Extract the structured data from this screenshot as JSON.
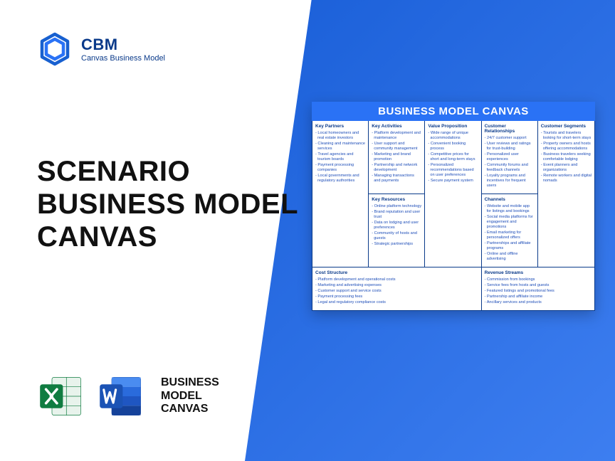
{
  "brand": {
    "short": "CBM",
    "tagline": "Canvas Business Model"
  },
  "title": {
    "line1": "SCENARIO",
    "line2": "BUSINESS MODEL",
    "line3": "CANVAS"
  },
  "iconsLabel": {
    "l1": "BUSINESS",
    "l2": "MODEL",
    "l3": "CANVAS"
  },
  "canvas": {
    "title": "BUSINESS MODEL CANVAS",
    "blocks": {
      "keyPartners": {
        "hd": "Key Partners",
        "items": [
          "Local homeowners and real estate investors",
          "Cleaning and maintenance services",
          "Travel agencies and tourism boards",
          "Payment processing companies",
          "Local governments and regulatory authorities"
        ]
      },
      "keyActivities": {
        "hd": "Key Activities",
        "items": [
          "Platform development and maintenance",
          "User support and community management",
          "Marketing and brand promotion",
          "Partnership and network development",
          "Managing transactions and payments"
        ]
      },
      "keyResources": {
        "hd": "Key Resources",
        "items": [
          "Online platform technology",
          "Brand reputation and user trust",
          "Data on lodging and user preferences",
          "Community of hosts and guests",
          "Strategic partnerships"
        ]
      },
      "valueProp": {
        "hd": "Value Proposition",
        "items": [
          "Wide range of unique accommodations",
          "Convenient booking process",
          "Competitive prices for short and long-term stays",
          "Personalized recommendations based on user preferences",
          "Secure payment system"
        ]
      },
      "custRel": {
        "hd": "Customer Relationships",
        "items": [
          "24/7 customer support",
          "User reviews and ratings for trust-building",
          "Personalized user experiences",
          "Community forums and feedback channels",
          "Loyalty programs and incentives for frequent users"
        ]
      },
      "channels": {
        "hd": "Channels",
        "items": [
          "Website and mobile app for listings and bookings",
          "Social media platforms for engagement and promotions",
          "Email marketing for personalized offers",
          "Partnerships and affiliate programs",
          "Online and offline advertising"
        ]
      },
      "custSeg": {
        "hd": "Customer Segments",
        "items": [
          "Tourists and travelers looking for short-term stays",
          "Property owners and hosts offering accommodations",
          "Business travelers seeking comfortable lodging",
          "Event planners and organizations",
          "Remote workers and digital nomads"
        ]
      },
      "cost": {
        "hd": "Cost Structure",
        "items": [
          "Platform development and operational costs",
          "Marketing and advertising expenses",
          "Customer support and service costs",
          "Payment processing fees",
          "Legal and regulatory compliance costs"
        ]
      },
      "revenue": {
        "hd": "Revenue Streams",
        "items": [
          "Commission from bookings",
          "Service fees from hosts and guests",
          "Featured listings and promotional fees",
          "Partnership and affiliate income",
          "Ancillary services and products"
        ]
      }
    }
  },
  "colors": {
    "bgGrad1": "#1a5fd8",
    "bgGrad2": "#3d7ef0",
    "brand": "#0a3a8a",
    "header": "#2a72f5"
  }
}
